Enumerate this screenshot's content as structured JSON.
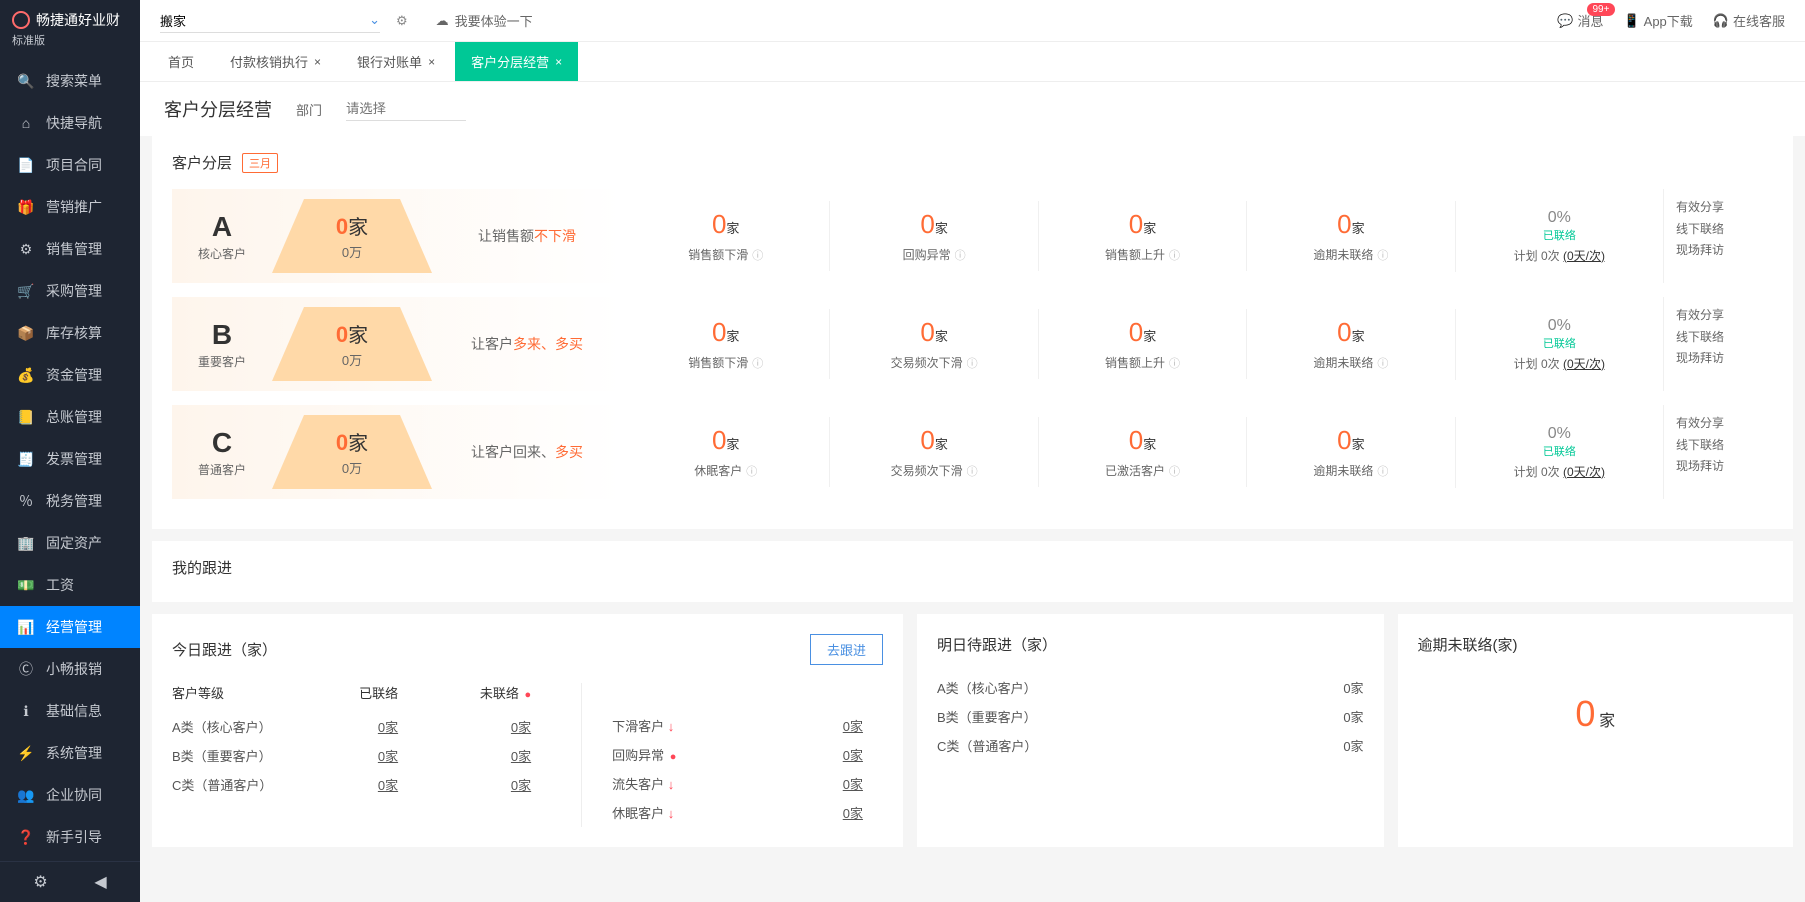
{
  "brand": {
    "name": "畅捷通好业财",
    "edition": "标准版"
  },
  "sidebar": {
    "items": [
      {
        "label": "搜索菜单",
        "icon": "search"
      },
      {
        "label": "快捷导航",
        "icon": "home"
      },
      {
        "label": "项目合同",
        "icon": "doc"
      },
      {
        "label": "营销推广",
        "icon": "gift"
      },
      {
        "label": "销售管理",
        "icon": "gear"
      },
      {
        "label": "采购管理",
        "icon": "cart"
      },
      {
        "label": "库存核算",
        "icon": "box"
      },
      {
        "label": "资金管理",
        "icon": "money"
      },
      {
        "label": "总账管理",
        "icon": "ledger"
      },
      {
        "label": "发票管理",
        "icon": "invoice"
      },
      {
        "label": "税务管理",
        "icon": "tax"
      },
      {
        "label": "固定资产",
        "icon": "asset"
      },
      {
        "label": "工资",
        "icon": "salary"
      },
      {
        "label": "经营管理",
        "icon": "biz",
        "active": true
      },
      {
        "label": "小畅报销",
        "icon": "expense"
      },
      {
        "label": "基础信息",
        "icon": "info"
      },
      {
        "label": "系统管理",
        "icon": "system"
      },
      {
        "label": "企业协同",
        "icon": "collab"
      },
      {
        "label": "新手引导",
        "icon": "guide"
      }
    ]
  },
  "topbar": {
    "search_value": "搬家",
    "try_label": "我要体验一下",
    "msg_label": "消息",
    "msg_badge": "99+",
    "app_label": "App下载",
    "service_label": "在线客服"
  },
  "tabs": [
    {
      "label": "首页",
      "closable": false
    },
    {
      "label": "付款核销执行",
      "closable": true
    },
    {
      "label": "银行对账单",
      "closable": true
    },
    {
      "label": "客户分层经营",
      "closable": true,
      "active": true
    }
  ],
  "page": {
    "title": "客户分层经营",
    "dept_label": "部门",
    "dept_placeholder": "请选择"
  },
  "segmentation": {
    "title": "客户分层",
    "month_tag": "三月",
    "share_labels": [
      "有效分享",
      "线下联络",
      "现场拜访"
    ],
    "tiers": [
      {
        "letter": "A",
        "name": "核心客户",
        "count": "0",
        "count_unit": "家",
        "amount": "0万",
        "slogan_pre": "让销售额",
        "slogan_hl": "不下滑",
        "metrics": [
          {
            "val": "0",
            "unit": "家",
            "label": "销售额下滑"
          },
          {
            "val": "0",
            "unit": "家",
            "label": "回购异常"
          },
          {
            "val": "0",
            "unit": "家",
            "label": "销售额上升"
          },
          {
            "val": "0",
            "unit": "家",
            "label": "逾期未联络"
          }
        ],
        "pct": "0%",
        "pct_label": "已联络",
        "plan": "计划 0次",
        "plan_rate": "(0天/次)"
      },
      {
        "letter": "B",
        "name": "重要客户",
        "count": "0",
        "count_unit": "家",
        "amount": "0万",
        "slogan_pre": "让客户",
        "slogan_hl": "多来、多买",
        "metrics": [
          {
            "val": "0",
            "unit": "家",
            "label": "销售额下滑"
          },
          {
            "val": "0",
            "unit": "家",
            "label": "交易频次下滑"
          },
          {
            "val": "0",
            "unit": "家",
            "label": "销售额上升"
          },
          {
            "val": "0",
            "unit": "家",
            "label": "逾期未联络"
          }
        ],
        "pct": "0%",
        "pct_label": "已联络",
        "plan": "计划 0次",
        "plan_rate": "(0天/次)"
      },
      {
        "letter": "C",
        "name": "普通客户",
        "count": "0",
        "count_unit": "家",
        "amount": "0万",
        "slogan_pre": "让客户回来、",
        "slogan_hl": "多买",
        "metrics": [
          {
            "val": "0",
            "unit": "家",
            "label": "休眠客户"
          },
          {
            "val": "0",
            "unit": "家",
            "label": "交易频次下滑"
          },
          {
            "val": "0",
            "unit": "家",
            "label": "已激活客户"
          },
          {
            "val": "0",
            "unit": "家",
            "label": "逾期未联络"
          }
        ],
        "pct": "0%",
        "pct_label": "已联络",
        "plan": "计划 0次",
        "plan_rate": "(0天/次)"
      }
    ]
  },
  "followup": {
    "section_title": "我的跟进",
    "today": {
      "title": "今日跟进（家）",
      "btn": "去跟进",
      "headers": [
        "客户等级",
        "已联络",
        "未联络"
      ],
      "rows": [
        {
          "label": "A类（核心客户）",
          "contacted": "0家",
          "uncontacted": "0家"
        },
        {
          "label": "B类（重要客户）",
          "contacted": "0家",
          "uncontacted": "0家"
        },
        {
          "label": "C类（普通客户）",
          "contacted": "0家",
          "uncontacted": "0家"
        }
      ],
      "status_rows": [
        {
          "label": "下滑客户",
          "icon": "down",
          "val": "0家"
        },
        {
          "label": "回购异常",
          "icon": "warn",
          "val": "0家"
        },
        {
          "label": "流失客户",
          "icon": "down",
          "val": "0家"
        },
        {
          "label": "休眠客户",
          "icon": "down",
          "val": "0家"
        }
      ]
    },
    "tomorrow": {
      "title": "明日待跟进（家）",
      "rows": [
        {
          "label": "A类（核心客户）",
          "val": "0家"
        },
        {
          "label": "B类（重要客户）",
          "val": "0家"
        },
        {
          "label": "C类（普通客户）",
          "val": "0家"
        }
      ]
    },
    "overdue": {
      "title": "逾期未联络(家)",
      "val": "0",
      "unit": "家"
    }
  }
}
